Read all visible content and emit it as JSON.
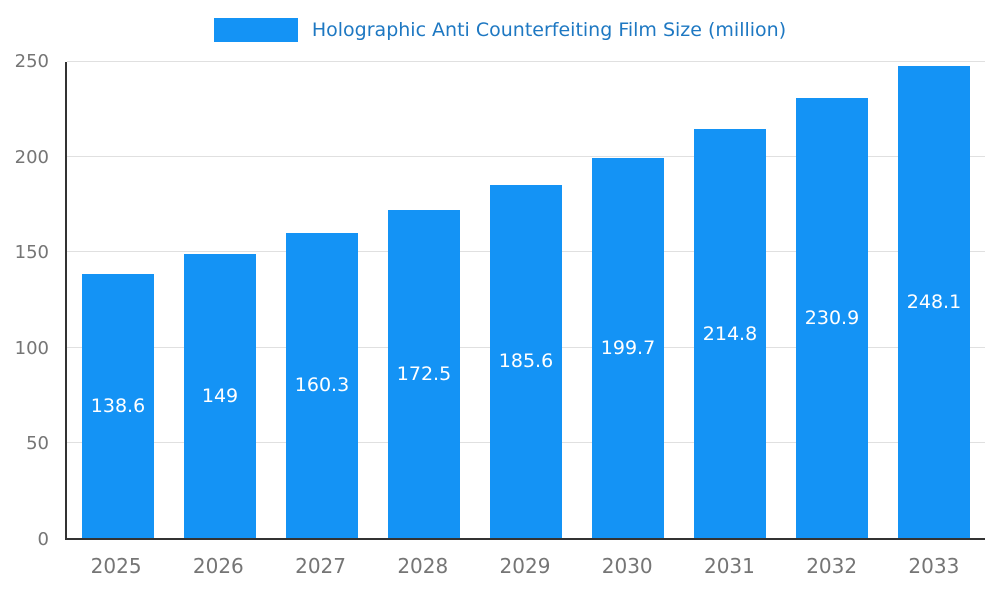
{
  "legend": {
    "label": "Holographic Anti Counterfeiting Film Size (million)"
  },
  "chart_data": {
    "type": "bar",
    "title": "Holographic Anti Counterfeiting Film Size (million)",
    "categories": [
      "2025",
      "2026",
      "2027",
      "2028",
      "2029",
      "2030",
      "2031",
      "2032",
      "2033"
    ],
    "values": [
      138.6,
      149,
      160.3,
      172.5,
      185.6,
      199.7,
      214.8,
      230.9,
      248.1
    ],
    "value_labels": [
      "138.6",
      "149",
      "160.3",
      "172.5",
      "185.6",
      "199.7",
      "214.8",
      "230.9",
      "248.1"
    ],
    "xlabel": "",
    "ylabel": "",
    "ylim": [
      0,
      250
    ],
    "yticks": [
      0,
      50,
      100,
      150,
      200,
      250
    ],
    "grid": "horizontal",
    "legend_position": "top",
    "bar_color": "#1493f5",
    "value_label_color": "#ffffff",
    "axis_text_color": "#757575",
    "legend_text_color": "#1e78c2",
    "axis_line_color": "#333333",
    "gridline_color": "#e0e0e0"
  }
}
